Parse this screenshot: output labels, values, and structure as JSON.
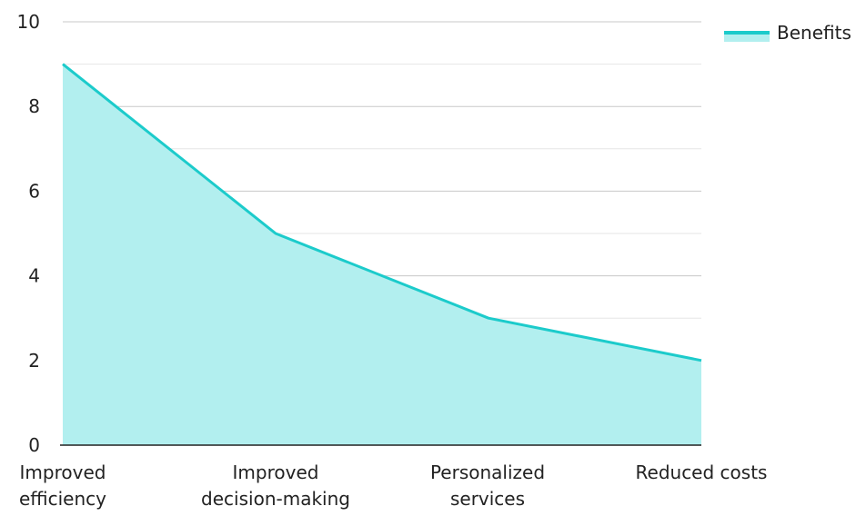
{
  "chart_data": {
    "type": "area",
    "categories": [
      [
        "Improved",
        "efficiency"
      ],
      [
        "Improved",
        "decision-making"
      ],
      [
        "Personalized",
        "services"
      ],
      [
        "Reduced costs"
      ]
    ],
    "series": [
      {
        "name": "Benefits",
        "values": [
          9,
          5,
          3,
          2
        ],
        "line_color": "#1ccbcb",
        "fill_color": "#b2efef"
      }
    ],
    "ylim": [
      0,
      10
    ],
    "yticks": [
      "0",
      "2",
      "4",
      "6",
      "8",
      "10"
    ],
    "grid": true,
    "legend_position": "top-right"
  }
}
